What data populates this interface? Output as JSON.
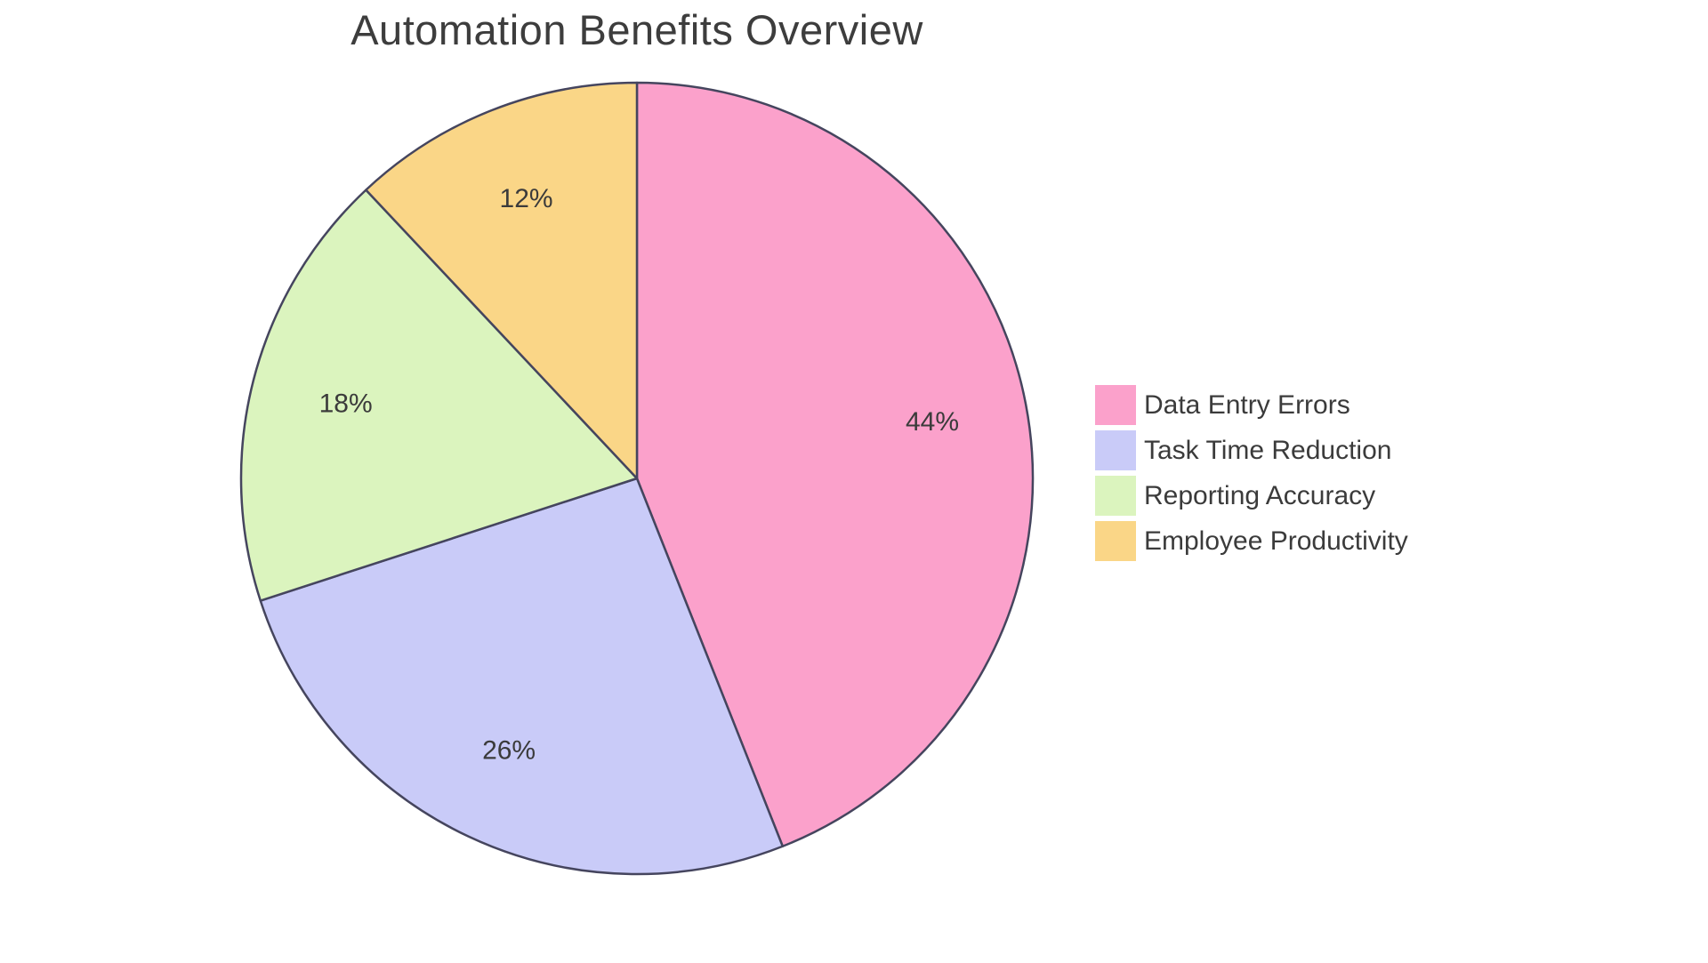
{
  "chart_data": {
    "type": "pie",
    "title": "Automation Benefits Overview",
    "labels": [
      "Data Entry Errors",
      "Task Time Reduction",
      "Reporting Accuracy",
      "Employee Productivity"
    ],
    "values": [
      44,
      26,
      18,
      12
    ],
    "value_labels": [
      "44%",
      "26%",
      "18%",
      "12%"
    ],
    "colors": [
      "#FBA1CB",
      "#C9CBF8",
      "#DBF4BE",
      "#FAD687"
    ],
    "stroke_color": "#45455E",
    "label_color": "#3B3B3B",
    "title_color": "#3D3D3D",
    "legend_position": "right",
    "start_angle_deg": -90,
    "direction": "clockwise",
    "background": "#FFFFFF"
  }
}
